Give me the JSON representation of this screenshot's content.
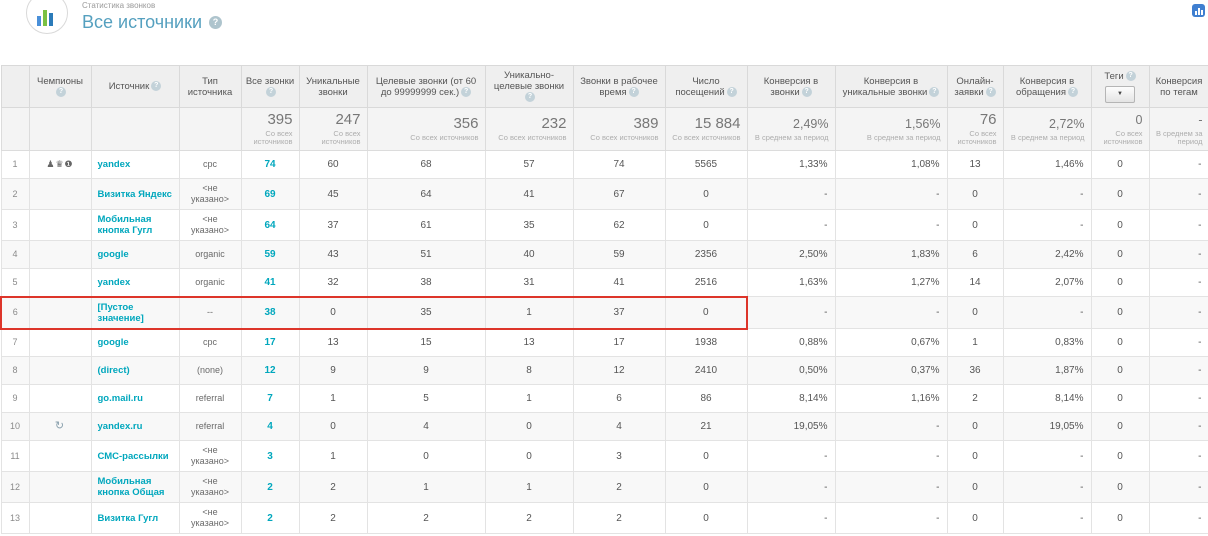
{
  "page": {
    "breadcrumb": "Статистика звонков",
    "title": "Все источники"
  },
  "icons": {
    "help": "?",
    "dropdown": "▼",
    "bell-icon": "♟",
    "trophy-icon": "♛",
    "medal-icon": "❶",
    "refresh-icon": "↻"
  },
  "table": {
    "headers": {
      "number": "",
      "champions": "Чемпионы",
      "source": "Источник",
      "type": "Тип источника",
      "all_calls": "Все звонки",
      "unique_calls": "Уникальные звонки",
      "target_calls": "Целевые звонки (от 60 до 99999999 сек.)",
      "unique_target_calls": "Уникально-целевые звонки",
      "worktime_calls": "Звонки в рабочее время",
      "visits": "Число посещений",
      "conv_calls": "Конверсия в звонки",
      "conv_unique_calls": "Конверсия в уникальные звонки",
      "online_requests": "Онлайн-заявки",
      "conv_requests": "Конверсия в обращения",
      "tags": "Теги",
      "conv_tags": "Конверсия по тегам"
    },
    "totals": {
      "all_calls": {
        "value": "395",
        "caption": "Со всех источников"
      },
      "unique_calls": {
        "value": "247",
        "caption": "Со всех источников"
      },
      "target_calls": {
        "value": "356",
        "caption": "Со всех источников"
      },
      "unique_target_calls": {
        "value": "232",
        "caption": "Со всех источников"
      },
      "worktime_calls": {
        "value": "389",
        "caption": "Со всех источников"
      },
      "visits": {
        "value": "15 884",
        "caption": "Со всех источников"
      },
      "conv_calls": {
        "value": "2,49%",
        "caption": "В среднем за период"
      },
      "conv_unique_calls": {
        "value": "1,56%",
        "caption": "В среднем за период"
      },
      "online_requests": {
        "value": "76",
        "caption": "Со всех источников"
      },
      "conv_requests": {
        "value": "2,72%",
        "caption": "В среднем за период"
      },
      "tags": {
        "value": "0",
        "caption": "Со всех источников"
      },
      "conv_tags": {
        "value": "-",
        "caption": "В среднем за период"
      }
    },
    "rows": [
      {
        "num": "1",
        "champions": [
          "bell-icon",
          "trophy-icon",
          "medal-icon"
        ],
        "source": "yandex",
        "type": "cpc",
        "all_calls": "74",
        "unique_calls": "60",
        "target_calls": "68",
        "unique_target_calls": "57",
        "worktime_calls": "74",
        "visits": "5565",
        "conv_calls": "1,33%",
        "conv_unique_calls": "1,08%",
        "online_requests": "13",
        "conv_requests": "1,46%",
        "tags": "0",
        "conv_tags": "-"
      },
      {
        "num": "2",
        "champions": [],
        "source": "Визитка Яндекс",
        "type": "<не указано>",
        "all_calls": "69",
        "unique_calls": "45",
        "target_calls": "64",
        "unique_target_calls": "41",
        "worktime_calls": "67",
        "visits": "0",
        "conv_calls": "-",
        "conv_unique_calls": "-",
        "online_requests": "0",
        "conv_requests": "-",
        "tags": "0",
        "conv_tags": "-"
      },
      {
        "num": "3",
        "champions": [],
        "source": "Мобильная кнопка Гугл",
        "type": "<не указано>",
        "all_calls": "64",
        "unique_calls": "37",
        "target_calls": "61",
        "unique_target_calls": "35",
        "worktime_calls": "62",
        "visits": "0",
        "conv_calls": "-",
        "conv_unique_calls": "-",
        "online_requests": "0",
        "conv_requests": "-",
        "tags": "0",
        "conv_tags": "-"
      },
      {
        "num": "4",
        "champions": [],
        "source": "google",
        "type": "organic",
        "all_calls": "59",
        "unique_calls": "43",
        "target_calls": "51",
        "unique_target_calls": "40",
        "worktime_calls": "59",
        "visits": "2356",
        "conv_calls": "2,50%",
        "conv_unique_calls": "1,83%",
        "online_requests": "6",
        "conv_requests": "2,42%",
        "tags": "0",
        "conv_tags": "-"
      },
      {
        "num": "5",
        "champions": [],
        "source": "yandex",
        "type": "organic",
        "all_calls": "41",
        "unique_calls": "32",
        "target_calls": "38",
        "unique_target_calls": "31",
        "worktime_calls": "41",
        "visits": "2516",
        "conv_calls": "1,63%",
        "conv_unique_calls": "1,27%",
        "online_requests": "14",
        "conv_requests": "2,07%",
        "tags": "0",
        "conv_tags": "-"
      },
      {
        "num": "6",
        "highlighted": true,
        "champions": [],
        "source": "[Пустое значение]",
        "type": "--",
        "all_calls": "38",
        "unique_calls": "0",
        "target_calls": "35",
        "unique_target_calls": "1",
        "worktime_calls": "37",
        "visits": "0",
        "conv_calls": "-",
        "conv_unique_calls": "-",
        "online_requests": "0",
        "conv_requests": "-",
        "tags": "0",
        "conv_tags": "-"
      },
      {
        "num": "7",
        "champions": [],
        "source": "google",
        "type": "cpc",
        "all_calls": "17",
        "unique_calls": "13",
        "target_calls": "15",
        "unique_target_calls": "13",
        "worktime_calls": "17",
        "visits": "1938",
        "conv_calls": "0,88%",
        "conv_unique_calls": "0,67%",
        "online_requests": "1",
        "conv_requests": "0,83%",
        "tags": "0",
        "conv_tags": "-"
      },
      {
        "num": "8",
        "champions": [],
        "source": "(direct)",
        "type": "(none)",
        "all_calls": "12",
        "unique_calls": "9",
        "target_calls": "9",
        "unique_target_calls": "8",
        "worktime_calls": "12",
        "visits": "2410",
        "conv_calls": "0,50%",
        "conv_unique_calls": "0,37%",
        "online_requests": "36",
        "conv_requests": "1,87%",
        "tags": "0",
        "conv_tags": "-"
      },
      {
        "num": "9",
        "champions": [],
        "source": "go.mail.ru",
        "type": "referral",
        "all_calls": "7",
        "unique_calls": "1",
        "target_calls": "5",
        "unique_target_calls": "1",
        "worktime_calls": "6",
        "visits": "86",
        "conv_calls": "8,14%",
        "conv_unique_calls": "1,16%",
        "online_requests": "2",
        "conv_requests": "8,14%",
        "tags": "0",
        "conv_tags": "-"
      },
      {
        "num": "10",
        "champions": [
          "refresh-icon"
        ],
        "source": "yandex.ru",
        "type": "referral",
        "all_calls": "4",
        "unique_calls": "0",
        "target_calls": "4",
        "unique_target_calls": "0",
        "worktime_calls": "4",
        "visits": "21",
        "conv_calls": "19,05%",
        "conv_unique_calls": "-",
        "online_requests": "0",
        "conv_requests": "19,05%",
        "tags": "0",
        "conv_tags": "-"
      },
      {
        "num": "11",
        "champions": [],
        "source": "СМС-рассылки",
        "type": "<не указано>",
        "all_calls": "3",
        "unique_calls": "1",
        "target_calls": "0",
        "unique_target_calls": "0",
        "worktime_calls": "3",
        "visits": "0",
        "conv_calls": "-",
        "conv_unique_calls": "-",
        "online_requests": "0",
        "conv_requests": "-",
        "tags": "0",
        "conv_tags": "-"
      },
      {
        "num": "12",
        "champions": [],
        "source": "Мобильная кнопка Общая",
        "type": "<не указано>",
        "all_calls": "2",
        "unique_calls": "2",
        "target_calls": "1",
        "unique_target_calls": "1",
        "worktime_calls": "2",
        "visits": "0",
        "conv_calls": "-",
        "conv_unique_calls": "-",
        "online_requests": "0",
        "conv_requests": "-",
        "tags": "0",
        "conv_tags": "-"
      },
      {
        "num": "13",
        "champions": [],
        "source": "Визитка Гугл",
        "type": "<не указано>",
        "all_calls": "2",
        "unique_calls": "2",
        "target_calls": "2",
        "unique_target_calls": "2",
        "worktime_calls": "2",
        "visits": "0",
        "conv_calls": "-",
        "conv_unique_calls": "-",
        "online_requests": "0",
        "conv_requests": "-",
        "tags": "0",
        "conv_tags": "-"
      }
    ]
  }
}
